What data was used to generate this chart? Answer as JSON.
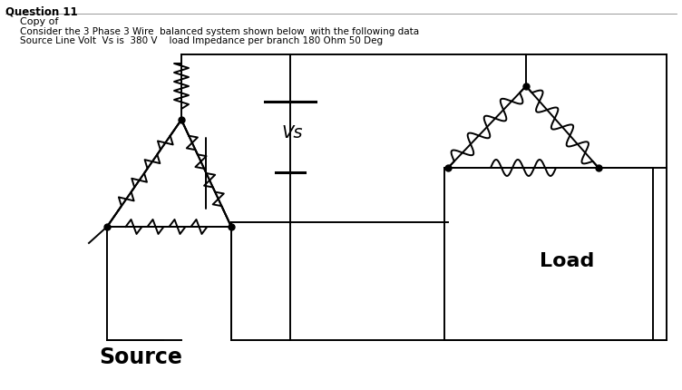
{
  "title": "Question 11",
  "subtitle": "Copy of",
  "desc1": "Consider the 3 Phase 3 Wire  balanced system shown below  with the following data",
  "desc2": "Source Line Volt  Vs is  380 V    load Impedance per branch 180 Ohm 50 Deg",
  "source_label": "Source",
  "load_label": "Load",
  "vs_label": "Vs",
  "bg_color": "#ffffff",
  "lc": "#000000"
}
